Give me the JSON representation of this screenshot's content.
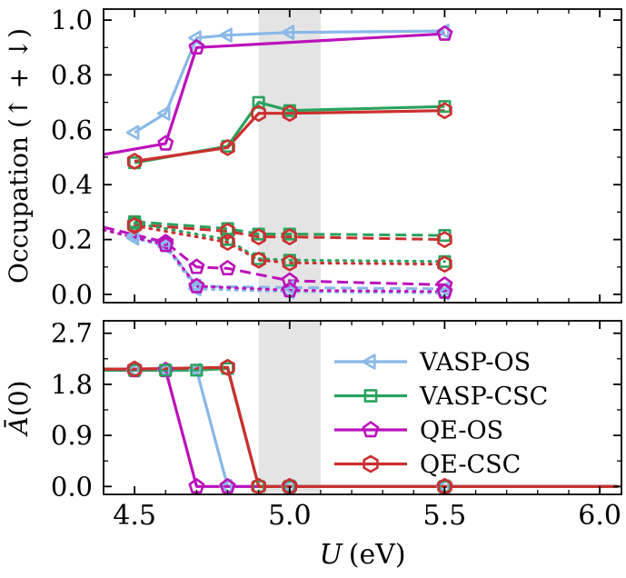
{
  "chart_data": {
    "type": "line",
    "xlabel_italic": "U",
    "xlabel_rest": "(eV)",
    "xlim": [
      4.4,
      6.07
    ],
    "xticks": [
      4.5,
      5.0,
      5.5,
      6.0
    ],
    "xtick_labels": [
      "4.5",
      "5.0",
      "5.5",
      "6.0"
    ],
    "x_minor_ticks": [
      4.6,
      4.7,
      4.8,
      4.9,
      5.1,
      5.2,
      5.3,
      5.4,
      5.6,
      5.7,
      5.8,
      5.9
    ],
    "band": {
      "x0": 4.9,
      "x1": 5.1,
      "color": "#e4e4e4"
    },
    "colors": {
      "VASP-OS": "#89b8e8",
      "VASP-CSC": "#2aa25e",
      "QE-OS": "#bb11bb",
      "QE-CSC": "#cd2e2e"
    },
    "markers": {
      "VASP-OS": "triangle-left",
      "VASP-CSC": "square",
      "QE-OS": "pentagon",
      "QE-CSC": "hexagon"
    },
    "panels": [
      {
        "name": "occupation",
        "ylabel": "Occupation (↑ + ↓)",
        "ylim": [
          -0.03,
          1.04
        ],
        "yticks": [
          0.0,
          0.2,
          0.4,
          0.6,
          0.8,
          1.0
        ],
        "ytick_labels": [
          "0.0",
          "0.2",
          "0.4",
          "0.6",
          "0.8",
          "1.0"
        ],
        "y_minor_ticks": [
          0.1,
          0.3,
          0.5,
          0.7,
          0.9
        ],
        "series": [
          {
            "code": "VASP-OS",
            "linestyle": "solid",
            "x": [
              4.5,
              4.6,
              4.7,
              4.8,
              5.0,
              5.5
            ],
            "y": [
              0.59,
              0.66,
              0.935,
              0.945,
              0.955,
              0.96
            ]
          },
          {
            "code": "QE-OS",
            "linestyle": "solid",
            "x": [
              4.4,
              4.6,
              4.7,
              5.5
            ],
            "y": [
              0.51,
              0.55,
              0.9,
              0.95
            ],
            "no_marker_idx": [
              0
            ]
          },
          {
            "code": "VASP-CSC",
            "linestyle": "solid",
            "x": [
              4.5,
              4.8,
              4.9,
              5.0,
              5.5
            ],
            "y": [
              0.48,
              0.54,
              0.7,
              0.67,
              0.685
            ]
          },
          {
            "code": "QE-CSC",
            "linestyle": "solid",
            "x": [
              4.5,
              4.8,
              4.9,
              5.0,
              5.5
            ],
            "y": [
              0.485,
              0.535,
              0.66,
              0.66,
              0.67
            ]
          },
          {
            "code": "VASP-OS",
            "linestyle": "dashed",
            "x": [
              4.5,
              4.6,
              4.7,
              5.0,
              5.5
            ],
            "y": [
              0.215,
              0.185,
              0.03,
              0.025,
              0.02
            ]
          },
          {
            "code": "QE-OS",
            "linestyle": "dashed",
            "x": [
              4.4,
              4.6,
              4.7,
              4.8,
              5.0,
              5.5
            ],
            "y": [
              0.245,
              0.19,
              0.1,
              0.095,
              0.05,
              0.035
            ],
            "no_marker_idx": [
              0
            ]
          },
          {
            "code": "VASP-CSC",
            "linestyle": "dashed",
            "x": [
              4.5,
              4.8,
              4.9,
              5.0,
              5.5
            ],
            "y": [
              0.265,
              0.24,
              0.22,
              0.22,
              0.215
            ]
          },
          {
            "code": "QE-CSC",
            "linestyle": "dashed",
            "x": [
              4.5,
              4.8,
              4.9,
              5.0,
              5.5
            ],
            "y": [
              0.255,
              0.23,
              0.21,
              0.21,
              0.2
            ]
          },
          {
            "code": "VASP-OS",
            "linestyle": "dotted",
            "x": [
              4.5,
              4.6,
              4.7,
              5.0,
              5.5
            ],
            "y": [
              0.205,
              0.175,
              0.02,
              0.01,
              0.005
            ]
          },
          {
            "code": "QE-OS",
            "linestyle": "dotted",
            "x": [
              4.4,
              4.6,
              4.7,
              5.0,
              5.5
            ],
            "y": [
              0.235,
              0.18,
              0.03,
              0.015,
              0.01
            ],
            "no_marker_idx": [
              0
            ]
          },
          {
            "code": "VASP-CSC",
            "linestyle": "dotted",
            "x": [
              4.5,
              4.8,
              4.9,
              5.0,
              5.5
            ],
            "y": [
              0.26,
              0.2,
              0.13,
              0.125,
              0.12
            ]
          },
          {
            "code": "QE-CSC",
            "linestyle": "dotted",
            "x": [
              4.5,
              4.8,
              4.9,
              5.0,
              5.5
            ],
            "y": [
              0.25,
              0.19,
              0.125,
              0.115,
              0.11
            ]
          }
        ]
      },
      {
        "name": "spectral-weight",
        "ylabel_italic": "Ā",
        "ylabel_rest": "(0)",
        "ylim": [
          -0.14,
          2.92
        ],
        "yticks": [
          0.0,
          0.9,
          1.8,
          2.7
        ],
        "ytick_labels": [
          "0.0",
          "0.9",
          "1.8",
          "2.7"
        ],
        "y_minor_ticks": [
          0.45,
          1.35,
          2.25
        ],
        "series": [
          {
            "code": "VASP-OS",
            "linestyle": "solid",
            "x": [
              4.4,
              4.5,
              4.6,
              4.7,
              4.8,
              5.0,
              5.5,
              6.06
            ],
            "y": [
              2.05,
              2.05,
              2.05,
              2.05,
              0,
              0,
              0,
              0
            ],
            "no_marker_idx": [
              0,
              7
            ]
          },
          {
            "code": "QE-OS",
            "linestyle": "solid",
            "x": [
              4.4,
              4.5,
              4.6,
              4.7,
              4.8,
              5.0,
              5.5,
              6.06
            ],
            "y": [
              2.05,
              2.05,
              2.05,
              0,
              0,
              0,
              0,
              0
            ],
            "no_marker_idx": [
              0,
              7
            ]
          },
          {
            "code": "VASP-CSC",
            "linestyle": "solid",
            "x": [
              4.4,
              4.5,
              4.6,
              4.7,
              4.8,
              4.9,
              5.0,
              5.5,
              6.06
            ],
            "y": [
              2.05,
              2.05,
              2.05,
              2.05,
              2.08,
              0,
              0,
              0,
              0
            ],
            "no_marker_idx": [
              0,
              8
            ]
          },
          {
            "code": "QE-CSC",
            "linestyle": "solid",
            "x": [
              4.4,
              4.5,
              4.8,
              4.9,
              5.0,
              5.5,
              6.06
            ],
            "y": [
              2.07,
              2.07,
              2.1,
              0,
              0,
              0,
              0
            ],
            "no_marker_idx": [
              0,
              6
            ]
          }
        ]
      }
    ],
    "legend": {
      "entries": [
        {
          "label": "VASP-OS",
          "code": "VASP-OS"
        },
        {
          "label": "VASP-CSC",
          "code": "VASP-CSC"
        },
        {
          "label": "QE-OS",
          "code": "QE-OS"
        },
        {
          "label": "QE-CSC",
          "code": "QE-CSC"
        }
      ]
    }
  }
}
